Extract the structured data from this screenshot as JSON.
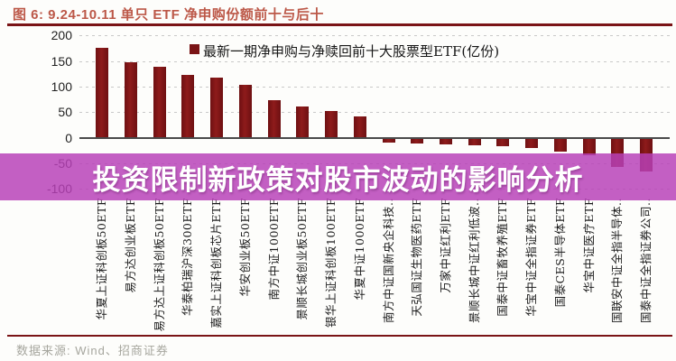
{
  "header": {
    "title": "图 6:  9.24-10.11 单只 ETF 净申购份额前十与后十"
  },
  "legend": {
    "label": "最新一期净申购与净赎回前十大股票型ETF(亿份)",
    "marker_color": "#7a1416"
  },
  "overlay": {
    "text": "投资限制新政策对股市波动的影响分析"
  },
  "source": {
    "text": "数据来源: Wind、招商证券"
  },
  "colors": {
    "bar": "#7a1416",
    "title_text": "#bc5848",
    "rule": "#7a1416",
    "gridline": "#c9c9c9",
    "axis": "#4a4a4a",
    "banner": "rgba(184,64,184,0.84)",
    "banner_text": "#ffffff",
    "source_text": "#a6a69e",
    "background": "#fdfdfb"
  },
  "chart_data": {
    "type": "bar",
    "title": "9.24-10.11 单只 ETF 净申购份额前十与后十",
    "legend_entries": [
      "最新一期净申购与净赎回前十大股票型ETF(亿份)"
    ],
    "legend_position": "top",
    "grid": "horizontal-dotted",
    "xlabel": "",
    "ylabel": "",
    "ylim": [
      -100,
      200
    ],
    "yticks": [
      200,
      150,
      100,
      50,
      0,
      -50,
      -100
    ],
    "categories": [
      "华夏上证科创板50ETF",
      "易方达创业板ETF",
      "易方达上证科创板50ETF",
      "华泰柏瑞沪深300ETF",
      "嘉实上证科创板芯片ETF",
      "华安创业板50ETF",
      "南方中证1000ETF",
      "景顺长城创业板50ETF",
      "银华上证科创板100ETF",
      "华夏中证1000ETF",
      "南方中证国新央企科技..",
      "天弘国证生物医药ETF",
      "万家中证红利ETF",
      "景顺长城中证红利低波..",
      "国泰中证畜牧养殖ETF",
      "华宝中证全指证券ETF",
      "国泰CES半导体ETF",
      "华宝中证医疗ETF",
      "国联安中证全指半导体..",
      "国泰中证全指证券公司.."
    ],
    "values": [
      175,
      148,
      138,
      122,
      118,
      104,
      74,
      61,
      52,
      41,
      -7,
      -9,
      -11,
      -12,
      -15,
      -17,
      -25,
      -31,
      -55,
      -64
    ]
  }
}
